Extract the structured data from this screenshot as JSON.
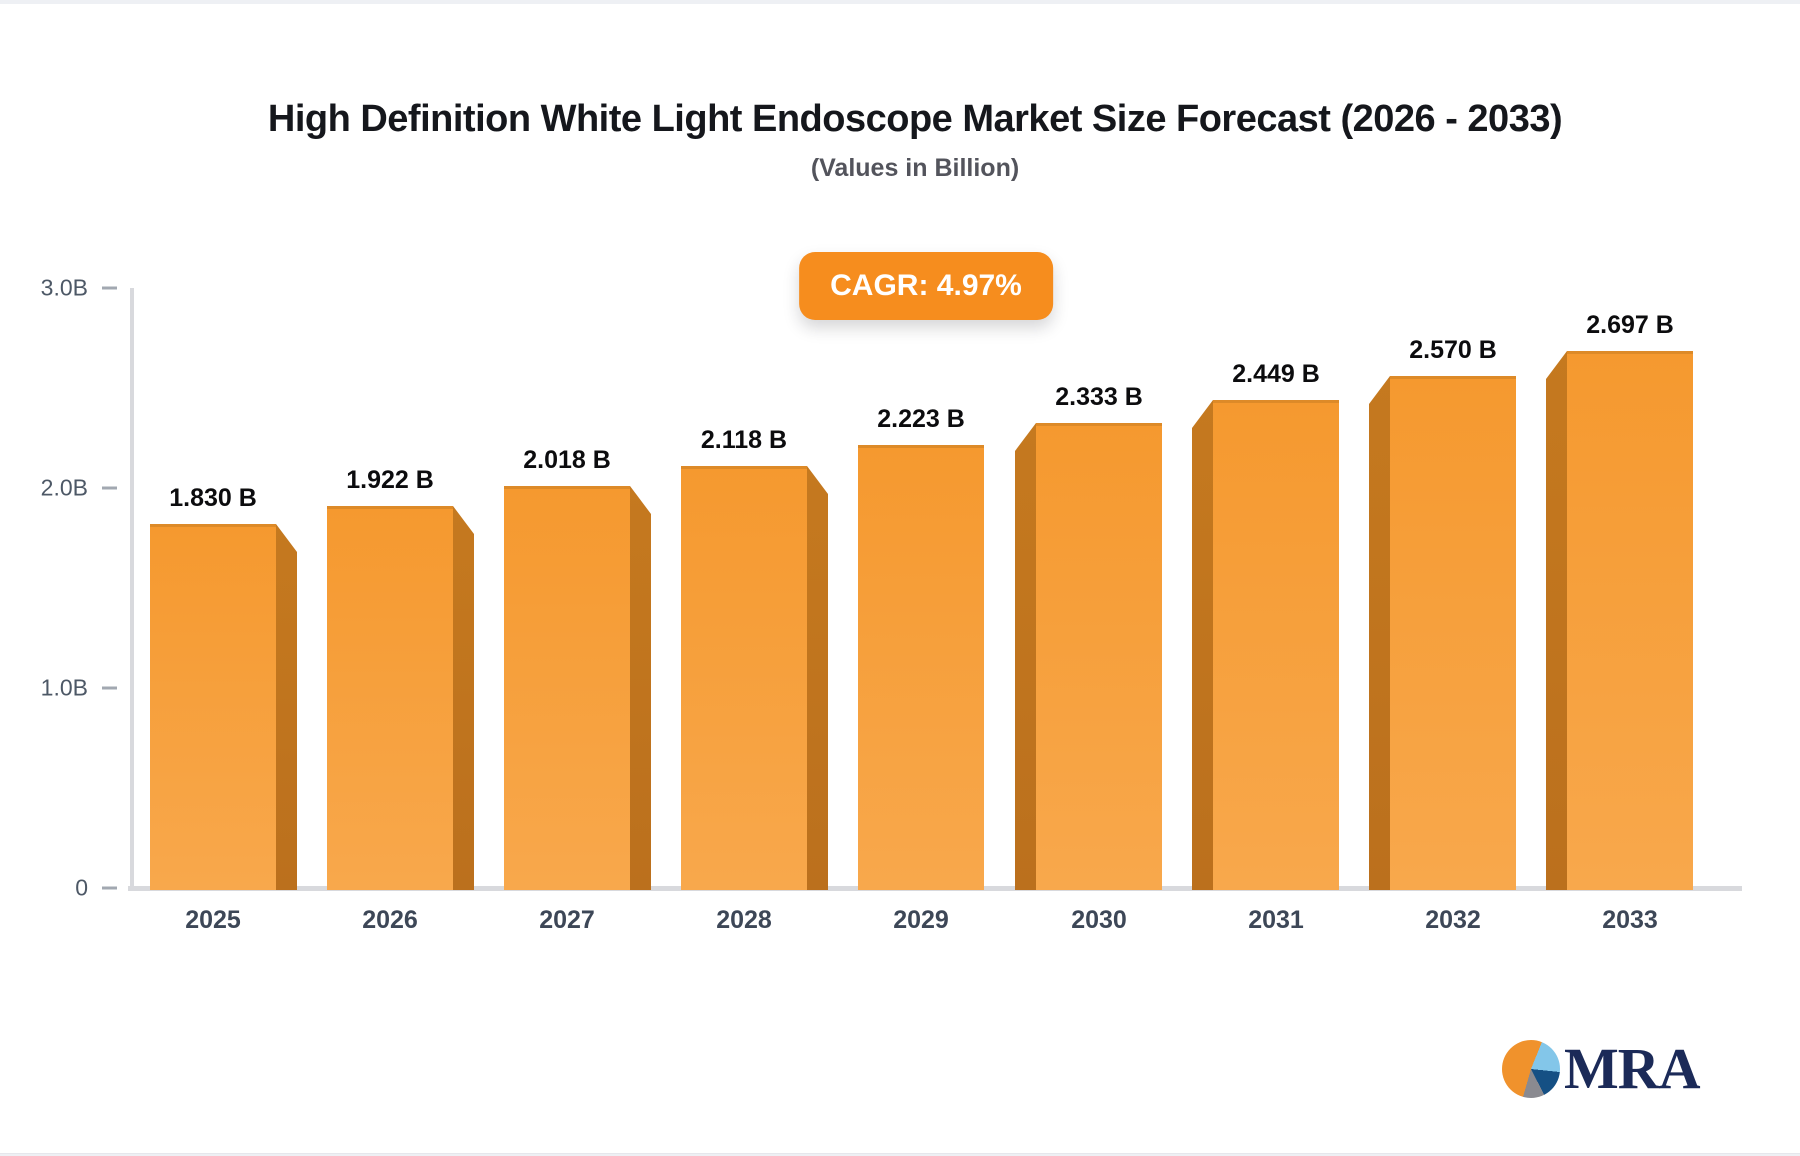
{
  "header": {
    "title": "High Definition White Light Endoscope Market Size Forecast (2026 - 2033)",
    "subtitle": "(Values in Billion)"
  },
  "badge": {
    "label": "CAGR: 4.97%",
    "color": "#f68d1e"
  },
  "logo": {
    "text": "MRA",
    "icon": "pie-chart-icon"
  },
  "chart_data": {
    "type": "bar",
    "title": "High Definition White Light Endoscope Market Size Forecast (2026 - 2033)",
    "subtitle": "(Values in Billion)",
    "categories": [
      "2025",
      "2026",
      "2027",
      "2028",
      "2029",
      "2030",
      "2031",
      "2032",
      "2033"
    ],
    "values": [
      1.83,
      1.922,
      2.018,
      2.118,
      2.223,
      2.333,
      2.449,
      2.57,
      2.697
    ],
    "value_labels": [
      "1.830 B",
      "1.922 B",
      "2.018 B",
      "2.118 B",
      "2.223 B",
      "2.333 B",
      "2.449 B",
      "2.570 B",
      "2.697 B"
    ],
    "xlabel": "",
    "ylabel": "",
    "ylim": [
      0,
      3.0
    ],
    "y_ticks": [
      "3.0B",
      "2.0B",
      "1.0B",
      "0"
    ],
    "y_tick_values": [
      3.0,
      2.0,
      1.0,
      0
    ],
    "grid": false,
    "legend": "none",
    "cagr": "CAGR: 4.97%",
    "bar_color_top": "#f5992f",
    "bar_color_bottom": "#f8a84c",
    "bar_side_color": "#c2771f",
    "axis_color": "#d8d9dd",
    "tick_label_color": "#4d5866"
  }
}
